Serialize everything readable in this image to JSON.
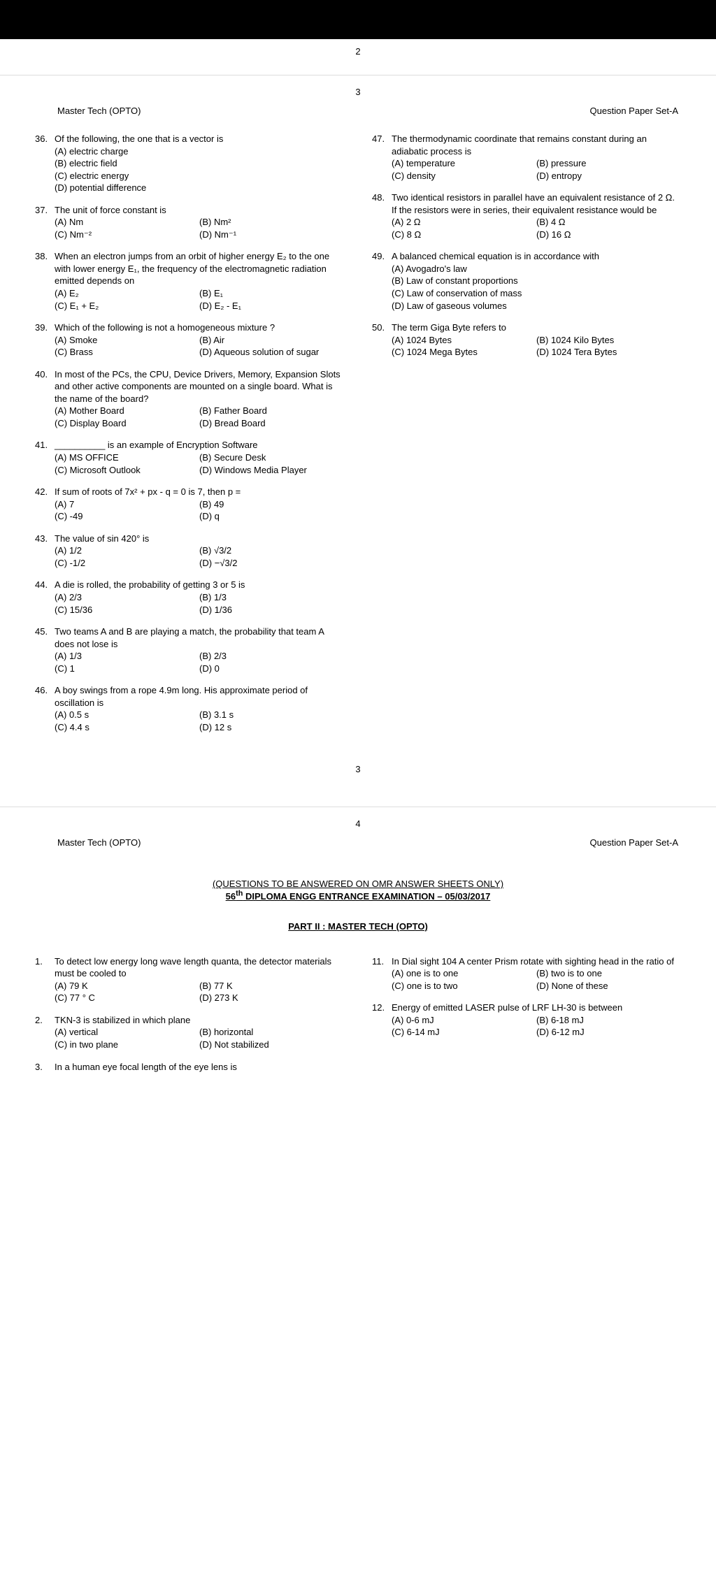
{
  "topBarHeight": 56,
  "page2num": "2",
  "page3": {
    "num": "3",
    "headerLeft": "Master Tech (OPTO)",
    "headerRight": "Question Paper Set-A",
    "leftQuestions": [
      {
        "n": "36.",
        "text": "Of the following, the one that is a vector is",
        "opts": [
          {
            "l": "(A) electric charge",
            "full": true
          },
          {
            "l": "(B) electric field",
            "full": true
          },
          {
            "l": "(C) electric energy",
            "full": true
          },
          {
            "l": "(D) potential difference",
            "full": true
          }
        ]
      },
      {
        "n": "37.",
        "text": "The unit of force constant is",
        "opts": [
          {
            "l": "(A) Nm"
          },
          {
            "l": "(B) Nm²"
          },
          {
            "l": "(C) Nm⁻²"
          },
          {
            "l": "(D) Nm⁻¹"
          }
        ]
      },
      {
        "n": "38.",
        "text": "When an electron jumps from an orbit of higher energy E₂ to the one with lower energy E₁, the frequency of the electromagnetic radiation emitted depends on",
        "opts": [
          {
            "l": "(A) E₂"
          },
          {
            "l": "(B) E₁"
          },
          {
            "l": "(C) E₁ + E₂"
          },
          {
            "l": "(D) E₂ - E₁"
          }
        ]
      },
      {
        "n": "39.",
        "text": "Which of the following is not a homogeneous mixture ?",
        "opts": [
          {
            "l": "(A) Smoke"
          },
          {
            "l": "(B) Air"
          },
          {
            "l": "(C) Brass"
          },
          {
            "l": "(D) Aqueous solution of sugar"
          }
        ]
      },
      {
        "n": "40.",
        "text": "In most of the PCs, the CPU, Device Drivers, Memory, Expansion Slots and other active components are mounted on a single board. What is the name of the board?",
        "opts": [
          {
            "l": "(A) Mother Board"
          },
          {
            "l": "(B) Father Board"
          },
          {
            "l": "(C) Display Board"
          },
          {
            "l": "(D) Bread Board"
          }
        ]
      },
      {
        "n": "41.",
        "text": "__________ is an example of Encryption Software",
        "opts": [
          {
            "l": "(A) MS OFFICE"
          },
          {
            "l": "(B) Secure Desk"
          },
          {
            "l": "(C) Microsoft Outlook"
          },
          {
            "l": "(D) Windows Media Player"
          }
        ]
      },
      {
        "n": "42.",
        "text": "If sum of roots of 7x² + px - q = 0 is 7, then p =",
        "opts": [
          {
            "l": "(A) 7"
          },
          {
            "l": "(B) 49"
          },
          {
            "l": "(C) -49"
          },
          {
            "l": "(D) q"
          }
        ]
      },
      {
        "n": "43.",
        "text": "The value of sin 420° is",
        "opts": [
          {
            "l": "(A) 1/2"
          },
          {
            "l": "(B) √3/2"
          },
          {
            "l": "(C) -1/2"
          },
          {
            "l": "(D) −√3/2"
          }
        ]
      },
      {
        "n": "44.",
        "text": "A die is rolled, the probability of getting 3 or 5 is",
        "opts": [
          {
            "l": "(A) 2/3"
          },
          {
            "l": "(B) 1/3"
          },
          {
            "l": "(C) 15/36"
          },
          {
            "l": "(D) 1/36"
          }
        ]
      },
      {
        "n": "45.",
        "text": "Two teams A and B are playing a match, the probability that team A does not lose is",
        "opts": [
          {
            "l": "(A) 1/3"
          },
          {
            "l": "(B) 2/3"
          },
          {
            "l": "(C) 1"
          },
          {
            "l": "(D) 0"
          }
        ]
      },
      {
        "n": "46.",
        "text": "A boy swings from a rope 4.9m long. His approximate period of oscillation is",
        "opts": [
          {
            "l": "(A) 0.5 s"
          },
          {
            "l": "(B) 3.1 s"
          },
          {
            "l": "(C) 4.4 s"
          },
          {
            "l": "(D) 12 s"
          }
        ]
      }
    ],
    "rightQuestions": [
      {
        "n": "47.",
        "text": "The thermodynamic coordinate that remains constant during an adiabatic process is",
        "opts": [
          {
            "l": "(A) temperature"
          },
          {
            "l": "(B) pressure"
          },
          {
            "l": "(C) density"
          },
          {
            "l": "(D) entropy"
          }
        ]
      },
      {
        "n": "48.",
        "text": "Two identical resistors in parallel have an equivalent resistance of 2 Ω. If the resistors were in series, their equivalent resistance would be",
        "opts": [
          {
            "l": "(A) 2 Ω"
          },
          {
            "l": "(B) 4 Ω"
          },
          {
            "l": "(C) 8 Ω"
          },
          {
            "l": "(D) 16 Ω"
          }
        ]
      },
      {
        "n": "49.",
        "text": "A balanced chemical equation is in accordance with",
        "opts": [
          {
            "l": "(A) Avogadro's law",
            "full": true
          },
          {
            "l": "(B) Law of constant proportions",
            "full": true
          },
          {
            "l": "(C) Law of conservation of mass",
            "full": true
          },
          {
            "l": "(D) Law of gaseous volumes",
            "full": true
          }
        ]
      },
      {
        "n": "50.",
        "text": "The term Giga Byte refers to",
        "opts": [
          {
            "l": "(A) 1024 Bytes"
          },
          {
            "l": "(B) 1024 Kilo Bytes"
          },
          {
            "l": "(C) 1024 Mega Bytes"
          },
          {
            "l": "(D) 1024 Tera Bytes"
          }
        ]
      }
    ],
    "botNum": "3"
  },
  "page4": {
    "num": "4",
    "headerLeft": "Master Tech (OPTO)",
    "headerRight": "Question Paper Set-A",
    "omrLine": "(QUESTIONS TO BE ANSWERED ON OMR ANSWER SHEETS ONLY)",
    "examLine1": "56",
    "examLineSup": "th",
    "examLine2": " DIPLOMA ENGG ENTRANCE EXAMINATION – 05/03/2017",
    "partHead": "PART II : MASTER TECH (OPTO)",
    "leftQuestions": [
      {
        "n": "1.",
        "text": "To detect low energy long wave length quanta, the detector materials must be cooled to",
        "opts": [
          {
            "l": "(A) 79 K"
          },
          {
            "l": "(B) 77 K"
          },
          {
            "l": "(C) 77 ° C"
          },
          {
            "l": "(D) 273 K"
          }
        ]
      },
      {
        "n": "2.",
        "text": "TKN-3 is stabilized in which plane",
        "opts": [
          {
            "l": "(A) vertical"
          },
          {
            "l": "(B) horizontal"
          },
          {
            "l": "(C) in two plane"
          },
          {
            "l": "(D) Not stabilized"
          }
        ]
      },
      {
        "n": "3.",
        "text": "In a human eye focal length of the eye lens is",
        "opts": []
      }
    ],
    "rightQuestions": [
      {
        "n": "11.",
        "text": "In Dial sight 104 A center Prism rotate with sighting head in the ratio of",
        "opts": [
          {
            "l": "(A) one is to one"
          },
          {
            "l": "(B) two is to one"
          },
          {
            "l": "(C) one is to two"
          },
          {
            "l": "(D) None of these"
          }
        ]
      },
      {
        "n": "12.",
        "text": "Energy of emitted LASER pulse of LRF LH-30 is between",
        "opts": [
          {
            "l": "(A) 0-6 mJ"
          },
          {
            "l": "(B) 6-18 mJ"
          },
          {
            "l": "(C) 6-14 mJ"
          },
          {
            "l": "(D) 6-12 mJ"
          }
        ]
      }
    ]
  }
}
